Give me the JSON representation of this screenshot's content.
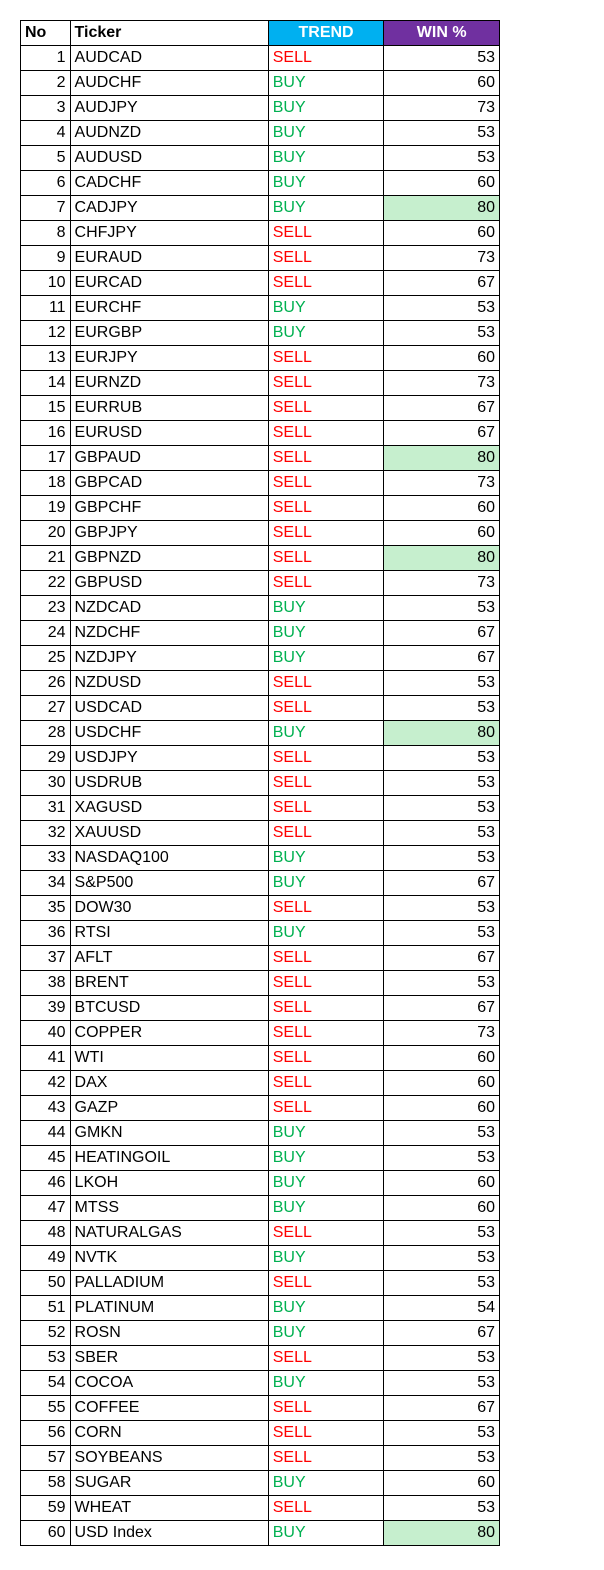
{
  "table": {
    "headers": {
      "no": "No",
      "ticker": "Ticker",
      "trend": "TREND",
      "win": "WIN %"
    },
    "header_colors": {
      "trend_bg": "#00b0f0",
      "win_bg": "#7030a0",
      "header_text": "#ffffff"
    },
    "trend_colors": {
      "BUY": "#00b050",
      "SELL": "#ff0000"
    },
    "highlight_bg": "#c6efce",
    "highlight_threshold": 80,
    "rows": [
      {
        "no": 1,
        "ticker": "AUDCAD",
        "trend": "SELL",
        "win": 53,
        "hl": false
      },
      {
        "no": 2,
        "ticker": "AUDCHF",
        "trend": "BUY",
        "win": 60,
        "hl": false
      },
      {
        "no": 3,
        "ticker": "AUDJPY",
        "trend": "BUY",
        "win": 73,
        "hl": false
      },
      {
        "no": 4,
        "ticker": "AUDNZD",
        "trend": "BUY",
        "win": 53,
        "hl": false
      },
      {
        "no": 5,
        "ticker": "AUDUSD",
        "trend": "BUY",
        "win": 53,
        "hl": false
      },
      {
        "no": 6,
        "ticker": "CADCHF",
        "trend": "BUY",
        "win": 60,
        "hl": false
      },
      {
        "no": 7,
        "ticker": "CADJPY",
        "trend": "BUY",
        "win": 80,
        "hl": true
      },
      {
        "no": 8,
        "ticker": "CHFJPY",
        "trend": "SELL",
        "win": 60,
        "hl": false
      },
      {
        "no": 9,
        "ticker": "EURAUD",
        "trend": "SELL",
        "win": 73,
        "hl": false
      },
      {
        "no": 10,
        "ticker": "EURCAD",
        "trend": "SELL",
        "win": 67,
        "hl": false
      },
      {
        "no": 11,
        "ticker": "EURCHF",
        "trend": "BUY",
        "win": 53,
        "hl": false
      },
      {
        "no": 12,
        "ticker": "EURGBP",
        "trend": "BUY",
        "win": 53,
        "hl": false
      },
      {
        "no": 13,
        "ticker": "EURJPY",
        "trend": "SELL",
        "win": 60,
        "hl": false
      },
      {
        "no": 14,
        "ticker": "EURNZD",
        "trend": "SELL",
        "win": 73,
        "hl": false
      },
      {
        "no": 15,
        "ticker": "EURRUB",
        "trend": "SELL",
        "win": 67,
        "hl": false
      },
      {
        "no": 16,
        "ticker": "EURUSD",
        "trend": "SELL",
        "win": 67,
        "hl": false
      },
      {
        "no": 17,
        "ticker": "GBPAUD",
        "trend": "SELL",
        "win": 80,
        "hl": true
      },
      {
        "no": 18,
        "ticker": "GBPCAD",
        "trend": "SELL",
        "win": 73,
        "hl": false
      },
      {
        "no": 19,
        "ticker": "GBPCHF",
        "trend": "SELL",
        "win": 60,
        "hl": false
      },
      {
        "no": 20,
        "ticker": "GBPJPY",
        "trend": "SELL",
        "win": 60,
        "hl": false
      },
      {
        "no": 21,
        "ticker": "GBPNZD",
        "trend": "SELL",
        "win": 80,
        "hl": true
      },
      {
        "no": 22,
        "ticker": "GBPUSD",
        "trend": "SELL",
        "win": 73,
        "hl": false
      },
      {
        "no": 23,
        "ticker": "NZDCAD",
        "trend": "BUY",
        "win": 53,
        "hl": false
      },
      {
        "no": 24,
        "ticker": "NZDCHF",
        "trend": "BUY",
        "win": 67,
        "hl": false
      },
      {
        "no": 25,
        "ticker": "NZDJPY",
        "trend": "BUY",
        "win": 67,
        "hl": false
      },
      {
        "no": 26,
        "ticker": "NZDUSD",
        "trend": "SELL",
        "win": 53,
        "hl": false
      },
      {
        "no": 27,
        "ticker": "USDCAD",
        "trend": "SELL",
        "win": 53,
        "hl": false
      },
      {
        "no": 28,
        "ticker": "USDCHF",
        "trend": "BUY",
        "win": 80,
        "hl": true
      },
      {
        "no": 29,
        "ticker": "USDJPY",
        "trend": "SELL",
        "win": 53,
        "hl": false
      },
      {
        "no": 30,
        "ticker": "USDRUB",
        "trend": "SELL",
        "win": 53,
        "hl": false
      },
      {
        "no": 31,
        "ticker": "XAGUSD",
        "trend": "SELL",
        "win": 53,
        "hl": false
      },
      {
        "no": 32,
        "ticker": "XAUUSD",
        "trend": "SELL",
        "win": 53,
        "hl": false
      },
      {
        "no": 33,
        "ticker": "NASDAQ100",
        "trend": "BUY",
        "win": 53,
        "hl": false
      },
      {
        "no": 34,
        "ticker": "S&P500",
        "trend": "BUY",
        "win": 67,
        "hl": false
      },
      {
        "no": 35,
        "ticker": "DOW30",
        "trend": "SELL",
        "win": 53,
        "hl": false
      },
      {
        "no": 36,
        "ticker": "RTSI",
        "trend": "BUY",
        "win": 53,
        "hl": false
      },
      {
        "no": 37,
        "ticker": "AFLT",
        "trend": "SELL",
        "win": 67,
        "hl": false
      },
      {
        "no": 38,
        "ticker": "BRENT",
        "trend": "SELL",
        "win": 53,
        "hl": false
      },
      {
        "no": 39,
        "ticker": "BTCUSD",
        "trend": "SELL",
        "win": 67,
        "hl": false
      },
      {
        "no": 40,
        "ticker": "COPPER",
        "trend": "SELL",
        "win": 73,
        "hl": false
      },
      {
        "no": 41,
        "ticker": "WTI",
        "trend": "SELL",
        "win": 60,
        "hl": false
      },
      {
        "no": 42,
        "ticker": "DAX",
        "trend": "SELL",
        "win": 60,
        "hl": false
      },
      {
        "no": 43,
        "ticker": "GAZP",
        "trend": "SELL",
        "win": 60,
        "hl": false
      },
      {
        "no": 44,
        "ticker": "GMKN",
        "trend": "BUY",
        "win": 53,
        "hl": false
      },
      {
        "no": 45,
        "ticker": "HEATINGOIL",
        "trend": "BUY",
        "win": 53,
        "hl": false
      },
      {
        "no": 46,
        "ticker": "LKOH",
        "trend": "BUY",
        "win": 60,
        "hl": false
      },
      {
        "no": 47,
        "ticker": "MTSS",
        "trend": "BUY",
        "win": 60,
        "hl": false
      },
      {
        "no": 48,
        "ticker": "NATURALGAS",
        "trend": "SELL",
        "win": 53,
        "hl": false
      },
      {
        "no": 49,
        "ticker": "NVTK",
        "trend": "BUY",
        "win": 53,
        "hl": false
      },
      {
        "no": 50,
        "ticker": "PALLADIUM",
        "trend": "SELL",
        "win": 53,
        "hl": false
      },
      {
        "no": 51,
        "ticker": "PLATINUM",
        "trend": "BUY",
        "win": 54,
        "hl": false
      },
      {
        "no": 52,
        "ticker": "ROSN",
        "trend": "BUY",
        "win": 67,
        "hl": false
      },
      {
        "no": 53,
        "ticker": "SBER",
        "trend": "SELL",
        "win": 53,
        "hl": false
      },
      {
        "no": 54,
        "ticker": "COCOA",
        "trend": "BUY",
        "win": 53,
        "hl": false
      },
      {
        "no": 55,
        "ticker": "COFFEE",
        "trend": "SELL",
        "win": 67,
        "hl": false
      },
      {
        "no": 56,
        "ticker": "CORN",
        "trend": "SELL",
        "win": 53,
        "hl": false
      },
      {
        "no": 57,
        "ticker": "SOYBEANS",
        "trend": "SELL",
        "win": 53,
        "hl": false
      },
      {
        "no": 58,
        "ticker": "SUGAR",
        "trend": "BUY",
        "win": 60,
        "hl": false
      },
      {
        "no": 59,
        "ticker": "WHEAT",
        "trend": "SELL",
        "win": 53,
        "hl": false
      },
      {
        "no": 60,
        "ticker": "USD Index",
        "trend": "BUY",
        "win": 80,
        "hl": true
      }
    ]
  }
}
